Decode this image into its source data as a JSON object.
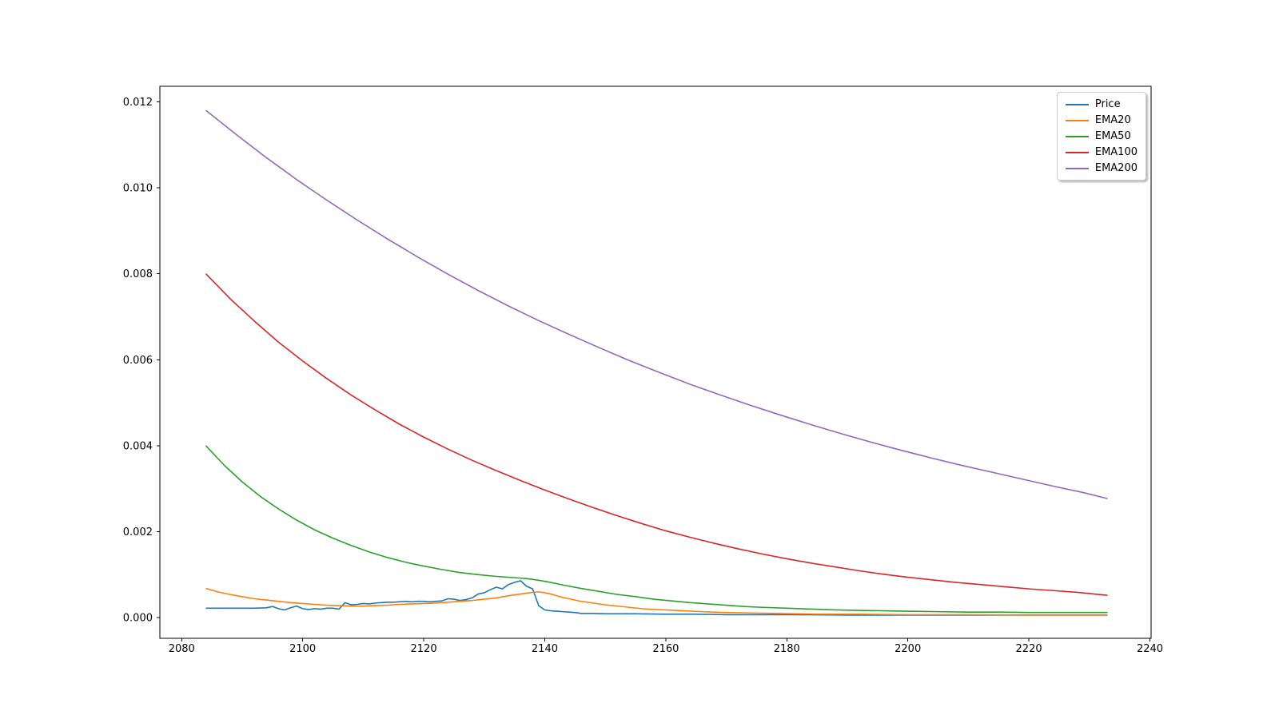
{
  "figure": {
    "background": "#ffffff",
    "spine_color": "#000000",
    "tick_color": "#000000"
  },
  "chart_data": {
    "type": "line",
    "title": "",
    "xlabel": "",
    "ylabel": "",
    "grid": false,
    "legend_position": "upper-right",
    "xlim": [
      2076.4,
      2240.2
    ],
    "ylim": [
      -0.00048,
      0.01236
    ],
    "x_ticks": [
      2080,
      2100,
      2120,
      2140,
      2160,
      2180,
      2200,
      2220,
      2240
    ],
    "x_tick_labels": [
      "2080",
      "2100",
      "2120",
      "2140",
      "2160",
      "2180",
      "2200",
      "2220",
      "2240"
    ],
    "y_ticks": [
      0.0,
      0.002,
      0.004,
      0.006,
      0.008,
      0.01,
      0.012
    ],
    "y_tick_labels": [
      "0.000",
      "0.002",
      "0.004",
      "0.006",
      "0.008",
      "0.010",
      "0.012"
    ],
    "series": [
      {
        "name": "Price",
        "color": "#1f77b4",
        "points": [
          [
            2084,
            0.00022
          ],
          [
            2086,
            0.00022
          ],
          [
            2088,
            0.00022
          ],
          [
            2090,
            0.00022
          ],
          [
            2092,
            0.00022
          ],
          [
            2094,
            0.00023
          ],
          [
            2095,
            0.00026
          ],
          [
            2096,
            0.00021
          ],
          [
            2097,
            0.00018
          ],
          [
            2098,
            0.00023
          ],
          [
            2099,
            0.00027
          ],
          [
            2100,
            0.00021
          ],
          [
            2101,
            0.00019
          ],
          [
            2102,
            0.00021
          ],
          [
            2103,
            0.0002
          ],
          [
            2104,
            0.00022
          ],
          [
            2105,
            0.00022
          ],
          [
            2106,
            0.0002
          ],
          [
            2107,
            0.00035
          ],
          [
            2108,
            0.0003
          ],
          [
            2109,
            0.00031
          ],
          [
            2110,
            0.00033
          ],
          [
            2111,
            0.00032
          ],
          [
            2112,
            0.00034
          ],
          [
            2113,
            0.00035
          ],
          [
            2114,
            0.00036
          ],
          [
            2115,
            0.00036
          ],
          [
            2116,
            0.00037
          ],
          [
            2117,
            0.00038
          ],
          [
            2118,
            0.00037
          ],
          [
            2119,
            0.00038
          ],
          [
            2120,
            0.00038
          ],
          [
            2121,
            0.00037
          ],
          [
            2122,
            0.00038
          ],
          [
            2123,
            0.00039
          ],
          [
            2124,
            0.00044
          ],
          [
            2125,
            0.00043
          ],
          [
            2126,
            0.0004
          ],
          [
            2127,
            0.00042
          ],
          [
            2128,
            0.00046
          ],
          [
            2129,
            0.00055
          ],
          [
            2130,
            0.00058
          ],
          [
            2131,
            0.00065
          ],
          [
            2132,
            0.00071
          ],
          [
            2133,
            0.00067
          ],
          [
            2134,
            0.00077
          ],
          [
            2135,
            0.00082
          ],
          [
            2136,
            0.00086
          ],
          [
            2137,
            0.00073
          ],
          [
            2138,
            0.00067
          ],
          [
            2139,
            0.00028
          ],
          [
            2140,
            0.00018
          ],
          [
            2141,
            0.00016
          ],
          [
            2142,
            0.00015
          ],
          [
            2143,
            0.00014
          ],
          [
            2144,
            0.00013
          ],
          [
            2145,
            0.00012
          ],
          [
            2146,
            0.0001
          ],
          [
            2148,
            0.0001
          ],
          [
            2150,
            9e-05
          ],
          [
            2155,
            9e-05
          ],
          [
            2160,
            8e-05
          ],
          [
            2165,
            8e-05
          ],
          [
            2170,
            7e-05
          ],
          [
            2180,
            7e-05
          ],
          [
            2190,
            6e-05
          ],
          [
            2200,
            6e-05
          ],
          [
            2210,
            6e-05
          ],
          [
            2220,
            6e-05
          ],
          [
            2233,
            6e-05
          ]
        ]
      },
      {
        "name": "EMA20",
        "color": "#ff7f0e",
        "points": [
          [
            2084,
            0.00068
          ],
          [
            2086,
            0.0006
          ],
          [
            2088,
            0.00054
          ],
          [
            2090,
            0.00049
          ],
          [
            2092,
            0.00044
          ],
          [
            2094,
            0.00041
          ],
          [
            2096,
            0.00038
          ],
          [
            2098,
            0.00035
          ],
          [
            2100,
            0.00033
          ],
          [
            2102,
            0.00031
          ],
          [
            2104,
            0.00029
          ],
          [
            2106,
            0.00028
          ],
          [
            2108,
            0.00027
          ],
          [
            2110,
            0.00027
          ],
          [
            2112,
            0.00028
          ],
          [
            2114,
            0.00029
          ],
          [
            2116,
            0.00031
          ],
          [
            2118,
            0.00032
          ],
          [
            2120,
            0.00033
          ],
          [
            2122,
            0.00034
          ],
          [
            2124,
            0.00036
          ],
          [
            2126,
            0.00038
          ],
          [
            2128,
            0.0004
          ],
          [
            2130,
            0.00043
          ],
          [
            2132,
            0.00046
          ],
          [
            2134,
            0.00051
          ],
          [
            2136,
            0.00055
          ],
          [
            2138,
            0.00059
          ],
          [
            2139,
            0.0006
          ],
          [
            2140,
            0.00058
          ],
          [
            2141,
            0.00055
          ],
          [
            2142,
            0.00051
          ],
          [
            2143,
            0.00047
          ],
          [
            2144,
            0.00044
          ],
          [
            2145,
            0.00041
          ],
          [
            2146,
            0.00038
          ],
          [
            2148,
            0.00034
          ],
          [
            2150,
            0.0003
          ],
          [
            2152,
            0.00027
          ],
          [
            2154,
            0.00024
          ],
          [
            2156,
            0.00021
          ],
          [
            2158,
            0.00019
          ],
          [
            2160,
            0.00018
          ],
          [
            2163,
            0.00016
          ],
          [
            2166,
            0.00014
          ],
          [
            2170,
            0.00012
          ],
          [
            2174,
            0.00011
          ],
          [
            2178,
            0.0001
          ],
          [
            2182,
            9e-05
          ],
          [
            2186,
            8e-05
          ],
          [
            2192,
            8e-05
          ],
          [
            2200,
            7e-05
          ],
          [
            2210,
            7e-05
          ],
          [
            2220,
            6e-05
          ],
          [
            2233,
            6e-05
          ]
        ]
      },
      {
        "name": "EMA50",
        "color": "#2ca02c",
        "points": [
          [
            2084,
            0.004
          ],
          [
            2087,
            0.00355
          ],
          [
            2090,
            0.00316
          ],
          [
            2093,
            0.00282
          ],
          [
            2096,
            0.00253
          ],
          [
            2099,
            0.00227
          ],
          [
            2102,
            0.00204
          ],
          [
            2105,
            0.00185
          ],
          [
            2108,
            0.00168
          ],
          [
            2111,
            0.00153
          ],
          [
            2114,
            0.0014
          ],
          [
            2117,
            0.00129
          ],
          [
            2120,
            0.0012
          ],
          [
            2123,
            0.00112
          ],
          [
            2126,
            0.00105
          ],
          [
            2129,
            0.001
          ],
          [
            2132,
            0.00096
          ],
          [
            2135,
            0.00093
          ],
          [
            2137,
            0.00091
          ],
          [
            2139,
            0.00087
          ],
          [
            2141,
            0.00082
          ],
          [
            2143,
            0.00076
          ],
          [
            2146,
            0.00068
          ],
          [
            2149,
            0.00061
          ],
          [
            2152,
            0.00054
          ],
          [
            2155,
            0.00049
          ],
          [
            2158,
            0.00043
          ],
          [
            2161,
            0.00039
          ],
          [
            2164,
            0.00035
          ],
          [
            2167,
            0.00032
          ],
          [
            2170,
            0.00029
          ],
          [
            2173,
            0.00026
          ],
          [
            2176,
            0.00024
          ],
          [
            2180,
            0.00022
          ],
          [
            2184,
            0.0002
          ],
          [
            2188,
            0.00018
          ],
          [
            2192,
            0.00017
          ],
          [
            2196,
            0.00016
          ],
          [
            2200,
            0.00015
          ],
          [
            2205,
            0.00014
          ],
          [
            2210,
            0.00013
          ],
          [
            2215,
            0.00013
          ],
          [
            2220,
            0.00012
          ],
          [
            2226,
            0.00012
          ],
          [
            2233,
            0.00012
          ]
        ]
      },
      {
        "name": "EMA100",
        "color": "#d62728",
        "points": [
          [
            2084,
            0.008
          ],
          [
            2088,
            0.00742
          ],
          [
            2092,
            0.0069
          ],
          [
            2096,
            0.00641
          ],
          [
            2100,
            0.00597
          ],
          [
            2104,
            0.00556
          ],
          [
            2108,
            0.00518
          ],
          [
            2112,
            0.00483
          ],
          [
            2116,
            0.0045
          ],
          [
            2120,
            0.0042
          ],
          [
            2124,
            0.00392
          ],
          [
            2128,
            0.00366
          ],
          [
            2132,
            0.00342
          ],
          [
            2136,
            0.00319
          ],
          [
            2140,
            0.00297
          ],
          [
            2144,
            0.00276
          ],
          [
            2148,
            0.00256
          ],
          [
            2152,
            0.00237
          ],
          [
            2156,
            0.00219
          ],
          [
            2160,
            0.00202
          ],
          [
            2164,
            0.00187
          ],
          [
            2168,
            0.00173
          ],
          [
            2172,
            0.0016
          ],
          [
            2176,
            0.00148
          ],
          [
            2180,
            0.00137
          ],
          [
            2184,
            0.00127
          ],
          [
            2188,
            0.00118
          ],
          [
            2192,
            0.00109
          ],
          [
            2196,
            0.00101
          ],
          [
            2200,
            0.00094
          ],
          [
            2204,
            0.00088
          ],
          [
            2208,
            0.00082
          ],
          [
            2212,
            0.00077
          ],
          [
            2216,
            0.00072
          ],
          [
            2220,
            0.00067
          ],
          [
            2224,
            0.00063
          ],
          [
            2228,
            0.00059
          ],
          [
            2233,
            0.00052
          ]
        ]
      },
      {
        "name": "EMA200",
        "color": "#9467bd",
        "points": [
          [
            2084,
            0.0118
          ],
          [
            2089,
            0.01124
          ],
          [
            2094,
            0.0107
          ],
          [
            2099,
            0.01019
          ],
          [
            2104,
            0.00971
          ],
          [
            2109,
            0.00925
          ],
          [
            2114,
            0.00881
          ],
          [
            2119,
            0.00839
          ],
          [
            2124,
            0.00799
          ],
          [
            2129,
            0.00761
          ],
          [
            2134,
            0.00725
          ],
          [
            2139,
            0.00691
          ],
          [
            2144,
            0.00659
          ],
          [
            2149,
            0.00628
          ],
          [
            2154,
            0.00598
          ],
          [
            2159,
            0.0057
          ],
          [
            2164,
            0.00543
          ],
          [
            2169,
            0.00518
          ],
          [
            2174,
            0.00494
          ],
          [
            2179,
            0.00471
          ],
          [
            2184,
            0.00449
          ],
          [
            2189,
            0.00428
          ],
          [
            2194,
            0.00408
          ],
          [
            2199,
            0.00389
          ],
          [
            2204,
            0.00371
          ],
          [
            2209,
            0.00354
          ],
          [
            2214,
            0.00338
          ],
          [
            2219,
            0.00322
          ],
          [
            2224,
            0.00306
          ],
          [
            2229,
            0.00291
          ],
          [
            2233,
            0.00277
          ]
        ]
      }
    ]
  }
}
